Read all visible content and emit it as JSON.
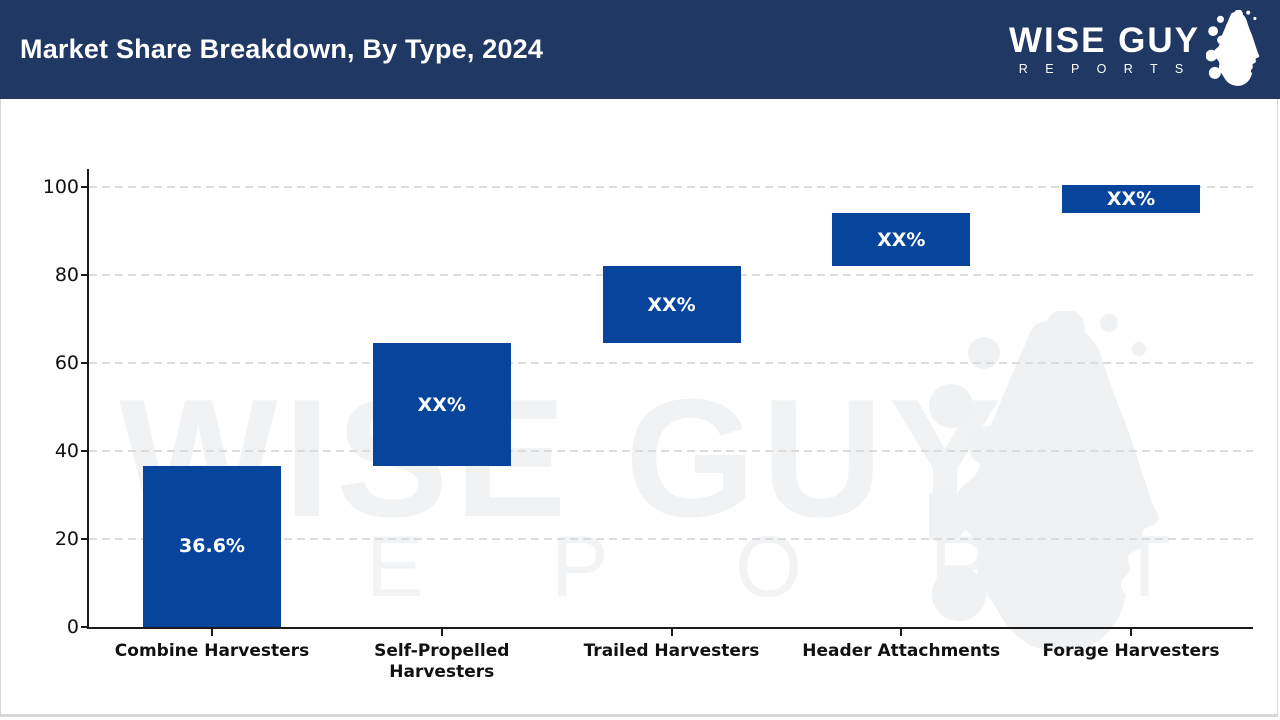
{
  "header": {
    "title": "Market Share Breakdown, By Type, 2024",
    "bg_color": "#203864",
    "brand": {
      "name": "WISE GUY",
      "sub": "R E P O R T S"
    }
  },
  "watermark": {
    "line1": "WISE GUY",
    "line2": "R E P O R T S"
  },
  "chart_data": {
    "type": "bar",
    "subtype": "waterfall-floating-bars",
    "title": "Market Share Breakdown, By Type, 2024",
    "categories": [
      "Combine Harvesters",
      "Self-Propelled Harvesters",
      "Trailed Harvesters",
      "Header Attachments",
      "Forage Harvesters"
    ],
    "segments": [
      {
        "start": 0,
        "end": 36.6,
        "label": "36.6%"
      },
      {
        "start": 36.6,
        "end": 64.5,
        "label": "XX%"
      },
      {
        "start": 64.5,
        "end": 82,
        "label": "XX%"
      },
      {
        "start": 82,
        "end": 94,
        "label": "XX%"
      },
      {
        "start": 94,
        "end": 100.5,
        "label": "XX%"
      }
    ],
    "bar_color": "#07449C",
    "bar_label_color": "#ffffff",
    "yticks": [
      0,
      20,
      40,
      60,
      80,
      100
    ],
    "ylim": [
      0,
      104
    ],
    "xlabel": "",
    "ylabel": "",
    "grid": "horizontal-dashed",
    "grid_color": "#dcdcdc",
    "legend": "none"
  }
}
